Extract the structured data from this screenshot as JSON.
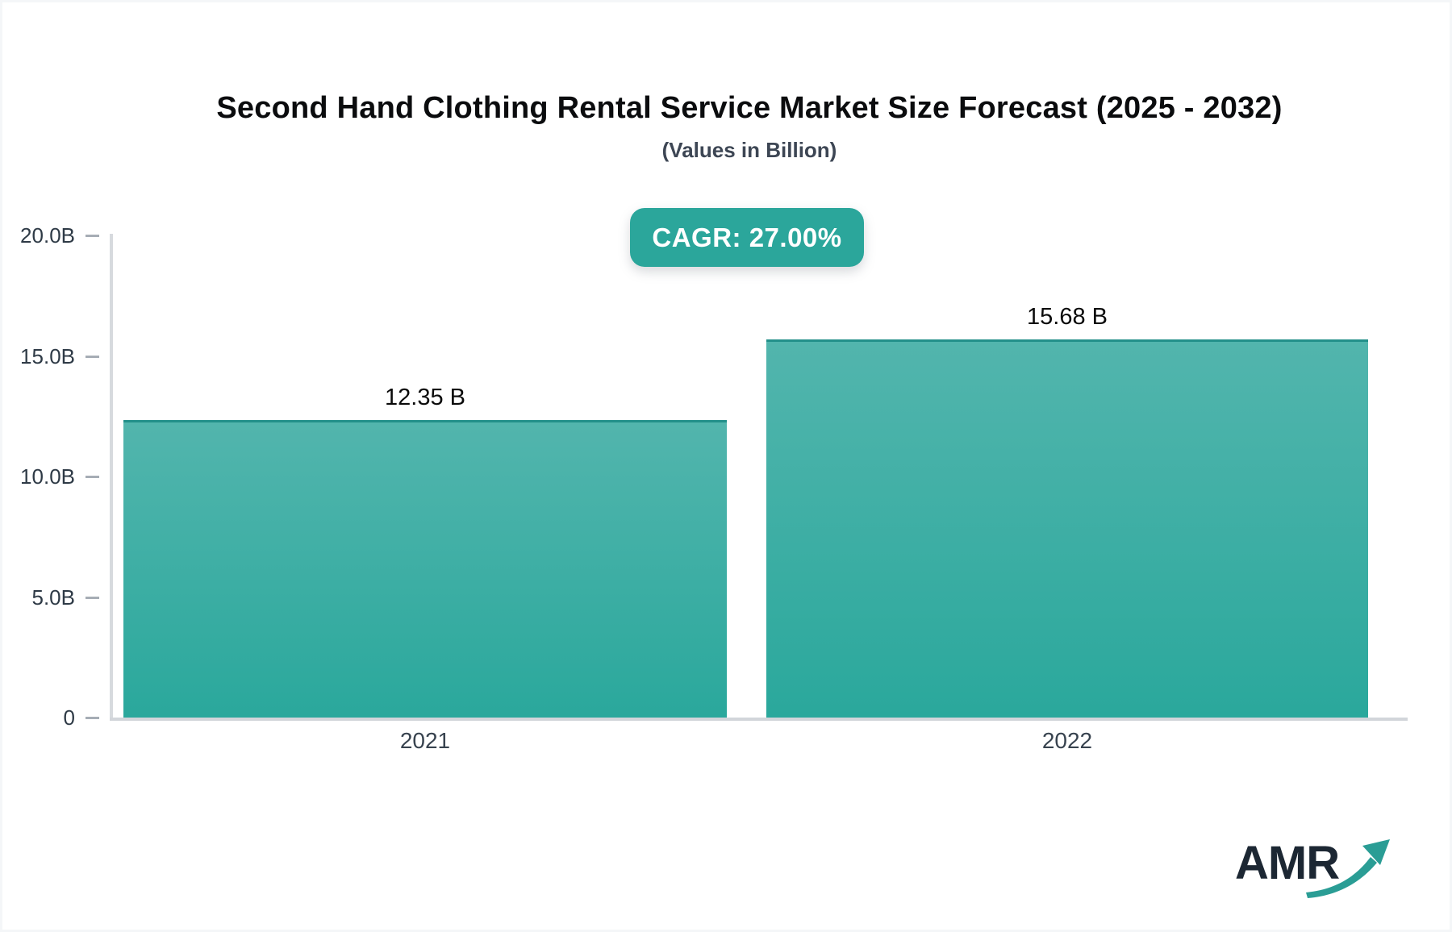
{
  "header": {
    "title": "Second Hand Clothing Rental Service Market Size Forecast (2025 - 2032)",
    "subtitle": "(Values in Billion)",
    "cagr_badge": "CAGR: 27.00%"
  },
  "logo": {
    "text": "AMR",
    "arrow_icon": "trending-up-arrow"
  },
  "colors": {
    "badge_bg": "#2ba69b",
    "bar_gradient_top": "#52b5ad",
    "bar_gradient_bottom": "#2aa89c",
    "bar_border": "#23908a",
    "logo_arrow": "#2a9d95"
  },
  "chart_data": {
    "type": "bar",
    "title": "Second Hand Clothing Rental Service Market Size Forecast (2025 - 2032)",
    "subtitle": "(Values in Billion)",
    "cagr": "27.00%",
    "categories": [
      "2021",
      "2022"
    ],
    "values": [
      12.35,
      15.68
    ],
    "value_labels": [
      "12.35 B",
      "15.68 B"
    ],
    "xlabel": "",
    "ylabel": "",
    "ylim": [
      0,
      20
    ],
    "yticks": [
      0,
      5,
      10,
      15,
      20
    ],
    "ytick_labels": [
      "0",
      "5.0B",
      "10.0B",
      "15.0B",
      "20.0B"
    ],
    "grid": false,
    "legend": false
  }
}
